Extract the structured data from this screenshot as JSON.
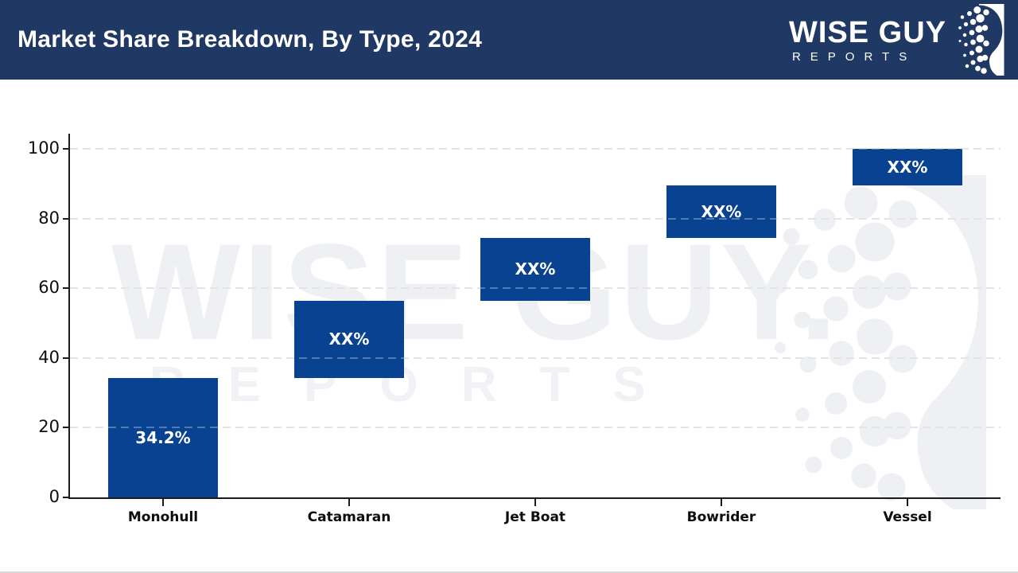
{
  "header": {
    "title": "Market Share Breakdown, By Type, 2024",
    "logo": {
      "line1": "WISE GUY",
      "line2": "REPORTS"
    }
  },
  "watermark": {
    "line1": "WISE GUY.",
    "line2": "REPORTS"
  },
  "colors": {
    "header_bg": "#1f3864",
    "bar": "#084290",
    "gridline": "#d9d9d9",
    "axis": "#1c1c1c",
    "bar_label": "#ffffff",
    "watermark": "#eff0f3"
  },
  "chart_data": {
    "type": "bar",
    "subtype": "waterfall",
    "title": "Market Share Breakdown, By Type, 2024",
    "categories": [
      "Monohull",
      "Catamaran",
      "Jet Boat",
      "Bowrider",
      "Vessel"
    ],
    "series": [
      {
        "name": "Market Share",
        "starts": [
          0,
          34.2,
          56.5,
          74.5,
          89.5
        ],
        "ends": [
          34.2,
          56.5,
          74.5,
          89.5,
          100
        ]
      }
    ],
    "bar_labels": [
      "34.2%",
      "XX%",
      "XX%",
      "XX%",
      "XX%"
    ],
    "yticks": [
      0,
      20,
      40,
      60,
      80,
      100
    ],
    "ylim": [
      0,
      100
    ],
    "xlabel": "",
    "ylabel": "",
    "grid": "dashed-horizontal",
    "legend": "none"
  }
}
